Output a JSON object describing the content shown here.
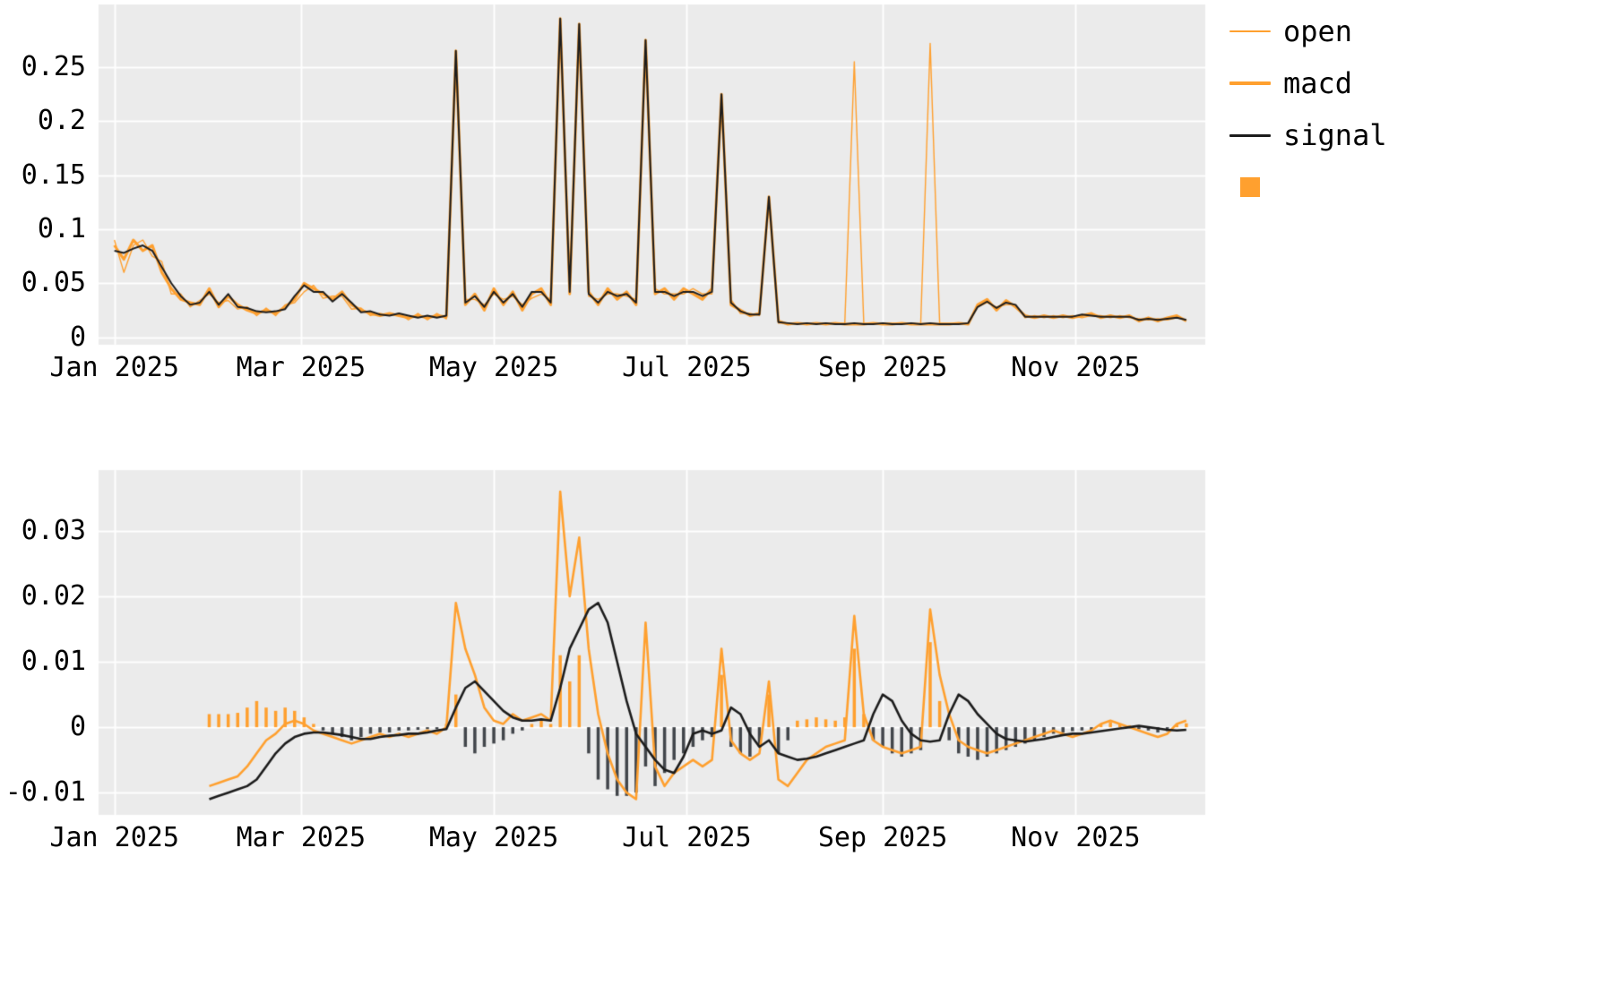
{
  "figure": {
    "background": "#ffffff",
    "plot_background": "#ebebeb",
    "grid_color": "#ffffff",
    "text_color": "#000000"
  },
  "legend": {
    "items": [
      {
        "label": "open",
        "swatch": "thin-line",
        "color": "#ffa02f"
      },
      {
        "label": "macd",
        "swatch": "thick-line",
        "color": "#ffa02f"
      },
      {
        "label": "signal",
        "swatch": "line",
        "color": "#1c1c1c"
      },
      {
        "label": "",
        "swatch": "square",
        "color": "#ffa02f"
      }
    ]
  },
  "chart_data": [
    {
      "type": "line",
      "name": "price-open-macd-signal",
      "x_days": {
        "start": 0,
        "step": 3,
        "count": 114,
        "unit": "day-of-year-2025"
      },
      "xlim": [
        -5,
        345
      ],
      "ylim": [
        -0.007,
        0.308
      ],
      "grid": true,
      "yticks": {
        "values": [
          0,
          0.05,
          0.1,
          0.15,
          0.2,
          0.25
        ],
        "labels": [
          "0",
          "0.05",
          "0.1",
          "0.15",
          "0.2",
          "0.25"
        ]
      },
      "xticks": {
        "days": [
          0,
          59,
          120,
          181,
          243,
          304
        ],
        "labels": [
          "Jan 2025",
          "Mar 2025",
          "May 2025",
          "Jul 2025",
          "Sep 2025",
          "Nov 2025"
        ]
      },
      "series": [
        {
          "name": "open",
          "kind": "line",
          "color": "#ffa02f",
          "width": 1.4,
          "values": [
            0.09,
            0.06,
            0.085,
            0.09,
            0.075,
            0.07,
            0.04,
            0.04,
            0.028,
            0.034,
            0.04,
            0.032,
            0.034,
            0.026,
            0.028,
            0.02,
            0.027,
            0.02,
            0.03,
            0.032,
            0.042,
            0.048,
            0.036,
            0.038,
            0.038,
            0.026,
            0.027,
            0.02,
            0.022,
            0.02,
            0.022,
            0.016,
            0.022,
            0.016,
            0.022,
            0.017,
            0.265,
            0.035,
            0.035,
            0.03,
            0.04,
            0.035,
            0.038,
            0.03,
            0.036,
            0.04,
            0.035,
            0.295,
            0.045,
            0.29,
            0.038,
            0.035,
            0.04,
            0.04,
            0.038,
            0.035,
            0.275,
            0.045,
            0.04,
            0.04,
            0.04,
            0.045,
            0.04,
            0.04,
            0.225,
            0.035,
            0.022,
            0.022,
            0.02,
            0.13,
            0.013,
            0.013,
            0.012,
            0.013,
            0.012,
            0.013,
            0.012,
            0.013,
            0.255,
            0.013,
            0.012,
            0.013,
            0.013,
            0.012,
            0.013,
            0.012,
            0.272,
            0.013,
            0.013,
            0.012,
            0.013,
            0.028,
            0.032,
            0.028,
            0.03,
            0.03,
            0.018,
            0.02,
            0.018,
            0.02,
            0.018,
            0.02,
            0.018,
            0.02,
            0.02,
            0.018,
            0.02,
            0.018,
            0.017,
            0.016,
            0.017,
            0.016,
            0.018,
            0.016
          ]
        },
        {
          "name": "macd",
          "kind": "line",
          "color": "#ffa02f",
          "width": 3,
          "values": [
            0.085,
            0.072,
            0.09,
            0.08,
            0.085,
            0.06,
            0.045,
            0.035,
            0.032,
            0.03,
            0.045,
            0.028,
            0.038,
            0.03,
            0.025,
            0.022,
            0.025,
            0.022,
            0.028,
            0.035,
            0.05,
            0.045,
            0.04,
            0.035,
            0.042,
            0.03,
            0.025,
            0.022,
            0.02,
            0.022,
            0.02,
            0.018,
            0.02,
            0.018,
            0.02,
            0.019,
            0.265,
            0.03,
            0.04,
            0.025,
            0.045,
            0.03,
            0.042,
            0.025,
            0.04,
            0.045,
            0.03,
            0.295,
            0.04,
            0.29,
            0.042,
            0.03,
            0.045,
            0.035,
            0.042,
            0.03,
            0.275,
            0.04,
            0.045,
            0.035,
            0.045,
            0.04,
            0.035,
            0.045,
            0.225,
            0.03,
            0.025,
            0.02,
            0.022,
            0.13,
            0.015,
            0.012,
            0.013,
            0.012,
            0.013,
            0.012,
            0.013,
            0.012,
            0.012,
            0.012,
            0.013,
            0.012,
            0.012,
            0.013,
            0.012,
            0.012,
            0.012,
            0.012,
            0.012,
            0.013,
            0.012,
            0.03,
            0.035,
            0.025,
            0.034,
            0.028,
            0.02,
            0.018,
            0.02,
            0.018,
            0.02,
            0.018,
            0.02,
            0.022,
            0.018,
            0.02,
            0.018,
            0.02,
            0.015,
            0.018,
            0.015,
            0.018,
            0.02,
            0.015
          ]
        },
        {
          "name": "signal",
          "kind": "line",
          "color": "#1c1c1c",
          "width": 2,
          "values": [
            0.08,
            0.078,
            0.082,
            0.085,
            0.08,
            0.065,
            0.05,
            0.038,
            0.03,
            0.032,
            0.042,
            0.03,
            0.04,
            0.028,
            0.027,
            0.024,
            0.023,
            0.024,
            0.026,
            0.038,
            0.048,
            0.042,
            0.042,
            0.033,
            0.04,
            0.032,
            0.023,
            0.024,
            0.021,
            0.02,
            0.022,
            0.02,
            0.018,
            0.02,
            0.018,
            0.02,
            0.265,
            0.032,
            0.038,
            0.028,
            0.042,
            0.032,
            0.04,
            0.028,
            0.042,
            0.042,
            0.032,
            0.295,
            0.042,
            0.29,
            0.04,
            0.032,
            0.042,
            0.038,
            0.04,
            0.032,
            0.275,
            0.042,
            0.042,
            0.038,
            0.042,
            0.042,
            0.038,
            0.042,
            0.225,
            0.032,
            0.024,
            0.021,
            0.021,
            0.13,
            0.014,
            0.013,
            0.012,
            0.013,
            0.012,
            0.013,
            0.012,
            0.012,
            0.013,
            0.012,
            0.012,
            0.013,
            0.012,
            0.012,
            0.013,
            0.012,
            0.013,
            0.012,
            0.012,
            0.012,
            0.013,
            0.028,
            0.033,
            0.027,
            0.032,
            0.03,
            0.019,
            0.019,
            0.019,
            0.019,
            0.019,
            0.019,
            0.021,
            0.02,
            0.019,
            0.019,
            0.019,
            0.019,
            0.016,
            0.017,
            0.016,
            0.017,
            0.018,
            0.016
          ]
        }
      ]
    },
    {
      "type": "bar",
      "name": "macd-signal-histogram",
      "x_days": {
        "start": 0,
        "step": 3,
        "count": 114,
        "unit": "day-of-year-2025"
      },
      "xlim": [
        -5,
        345
      ],
      "ylim": [
        -0.0134,
        0.0393
      ],
      "grid": true,
      "yticks": {
        "values": [
          -0.01,
          0,
          0.01,
          0.02,
          0.03
        ],
        "labels": [
          "-0.01",
          "0",
          "0.01",
          "0.02",
          "0.03"
        ]
      },
      "xticks": {
        "days": [
          0,
          59,
          120,
          181,
          243,
          304
        ],
        "labels": [
          "Jan 2025",
          "Mar 2025",
          "May 2025",
          "Jul 2025",
          "Sep 2025",
          "Nov 2025"
        ]
      },
      "series": [
        {
          "name": "histogram",
          "kind": "bar",
          "color_pos": "#ffa02f",
          "color_neg": "#42464b",
          "width": 3.5,
          "values": [
            null,
            null,
            null,
            null,
            null,
            null,
            null,
            null,
            null,
            null,
            0.002,
            0.002,
            0.002,
            0.0022,
            0.003,
            0.004,
            0.003,
            0.0025,
            0.003,
            0.0025,
            0.0015,
            0.0005,
            -0.0005,
            -0.001,
            -0.0015,
            -0.002,
            -0.0015,
            -0.001,
            -0.0008,
            -0.0008,
            -0.0005,
            -0.0005,
            -0.0004,
            -0.0003,
            -0.0003,
            0.0005,
            0.005,
            -0.003,
            -0.004,
            -0.003,
            -0.0025,
            -0.002,
            -0.001,
            -0.0005,
            0.0005,
            0.001,
            0.0005,
            0.011,
            0.007,
            0.011,
            -0.004,
            -0.008,
            -0.0095,
            -0.0105,
            -0.0105,
            -0.01,
            -0.006,
            -0.009,
            -0.007,
            -0.005,
            -0.004,
            -0.003,
            -0.002,
            -0.0015,
            0.008,
            -0.003,
            -0.004,
            -0.0045,
            -0.003,
            0.005,
            -0.004,
            -0.002,
            0.001,
            0.0012,
            0.0015,
            0.0012,
            0.001,
            0.0015,
            0.012,
            0.002,
            -0.002,
            -0.003,
            -0.004,
            -0.0045,
            -0.004,
            -0.0035,
            0.013,
            0.004,
            -0.002,
            -0.004,
            -0.0045,
            -0.005,
            -0.0045,
            -0.004,
            -0.0035,
            -0.003,
            -0.0025,
            -0.002,
            -0.0015,
            -0.001,
            -0.0008,
            -0.0006,
            -0.0005,
            -0.0004,
            0.0005,
            0.0008,
            0.0005,
            0.0003,
            -0.0003,
            -0.0005,
            -0.0008,
            -0.0006,
            0.0004,
            0.0006
          ]
        },
        {
          "name": "macd",
          "kind": "line",
          "color": "#ffa02f",
          "width": 2.6,
          "values": [
            null,
            null,
            null,
            null,
            null,
            null,
            null,
            null,
            null,
            null,
            -0.009,
            -0.0085,
            -0.008,
            -0.0075,
            -0.006,
            -0.004,
            -0.002,
            -0.001,
            0.0005,
            0.001,
            0.0005,
            -0.0005,
            -0.001,
            -0.0015,
            -0.002,
            -0.0025,
            -0.002,
            -0.0015,
            -0.001,
            -0.0015,
            -0.001,
            -0.0015,
            -0.001,
            -0.0005,
            -0.001,
            0.0,
            0.019,
            0.012,
            0.008,
            0.003,
            0.001,
            0.0005,
            0.002,
            0.001,
            0.0015,
            0.002,
            0.001,
            0.036,
            0.02,
            0.029,
            0.012,
            0.002,
            -0.004,
            -0.008,
            -0.01,
            -0.011,
            0.016,
            -0.006,
            -0.009,
            -0.007,
            -0.006,
            -0.005,
            -0.006,
            -0.005,
            0.012,
            -0.002,
            -0.004,
            -0.005,
            -0.004,
            0.007,
            -0.008,
            -0.009,
            -0.007,
            -0.005,
            -0.004,
            -0.003,
            -0.0025,
            -0.002,
            0.017,
            0.002,
            -0.002,
            -0.003,
            -0.0035,
            -0.004,
            -0.0035,
            -0.003,
            0.018,
            0.008,
            0.002,
            -0.002,
            -0.003,
            -0.0035,
            -0.004,
            -0.0035,
            -0.003,
            -0.0025,
            -0.002,
            -0.0015,
            -0.001,
            -0.0005,
            -0.001,
            -0.0015,
            -0.001,
            -0.0005,
            0.0005,
            0.001,
            0.0005,
            0.0,
            -0.0005,
            -0.001,
            -0.0015,
            -0.001,
            0.0005,
            0.001
          ]
        },
        {
          "name": "signal",
          "kind": "line",
          "color": "#1c1c1c",
          "width": 2.6,
          "values": [
            null,
            null,
            null,
            null,
            null,
            null,
            null,
            null,
            null,
            null,
            -0.011,
            -0.0105,
            -0.01,
            -0.0095,
            -0.009,
            -0.008,
            -0.006,
            -0.004,
            -0.0025,
            -0.0015,
            -0.001,
            -0.0008,
            -0.0008,
            -0.001,
            -0.0012,
            -0.0015,
            -0.0018,
            -0.0018,
            -0.0015,
            -0.0013,
            -0.0012,
            -0.001,
            -0.001,
            -0.0008,
            -0.0005,
            -0.0003,
            0.003,
            0.006,
            0.007,
            0.0055,
            0.004,
            0.0025,
            0.0015,
            0.001,
            0.001,
            0.0012,
            0.001,
            0.006,
            0.012,
            0.015,
            0.018,
            0.019,
            0.016,
            0.01,
            0.004,
            -0.001,
            -0.003,
            -0.005,
            -0.0065,
            -0.007,
            -0.0045,
            -0.001,
            -0.0005,
            -0.001,
            -0.0005,
            0.003,
            0.002,
            -0.001,
            -0.003,
            -0.002,
            -0.004,
            -0.0045,
            -0.005,
            -0.0048,
            -0.0045,
            -0.004,
            -0.0035,
            -0.003,
            -0.0025,
            -0.002,
            0.002,
            0.005,
            0.004,
            0.001,
            -0.001,
            -0.002,
            -0.0022,
            -0.002,
            0.002,
            0.005,
            0.004,
            0.002,
            0.0005,
            -0.001,
            -0.0018,
            -0.002,
            -0.0022,
            -0.002,
            -0.0018,
            -0.0015,
            -0.0012,
            -0.001,
            -0.001,
            -0.0008,
            -0.0006,
            -0.0004,
            -0.0002,
            0.0,
            0.0002,
            0.0,
            -0.0002,
            -0.0004,
            -0.0005,
            -0.0004
          ]
        }
      ]
    }
  ]
}
